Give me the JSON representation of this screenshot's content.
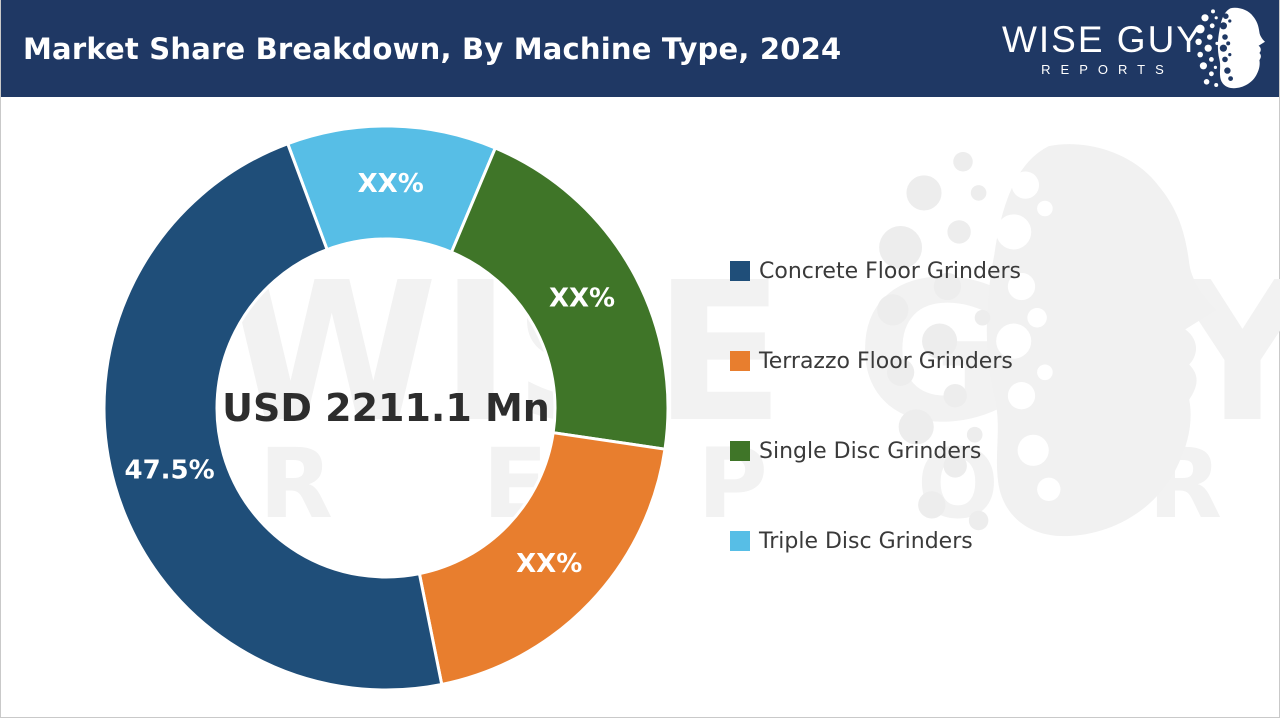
{
  "header": {
    "title": "Market Share Breakdown, By Machine Type, 2024",
    "background": "#1F3864",
    "logo": {
      "line1": "WISE GUY",
      "line2": "REPORTS"
    }
  },
  "watermark": {
    "line1": "WISE GUY",
    "line2": "R E P O R T S"
  },
  "chart_data": {
    "type": "pie",
    "subtype": "donut",
    "title": "Market Share Breakdown, By Machine Type, 2024",
    "center_label": "USD 2211.1 Mn",
    "start_angle_deg": -20.4,
    "clockwise": true,
    "legend_position": "right",
    "segments": [
      {
        "label": "Triple Disc Grinders",
        "display_pct": "XX%",
        "value_pct_est": 12.0,
        "color": "#57BEE6"
      },
      {
        "label": "Single Disc Grinders",
        "display_pct": "XX%",
        "value_pct_est": 21.0,
        "color": "#3F7528"
      },
      {
        "label": "Terrazzo Floor Grinders",
        "display_pct": "XX%",
        "value_pct_est": 19.5,
        "color": "#E87E2E"
      },
      {
        "label": "Concrete Floor Grinders",
        "display_pct": "47.5%",
        "value_pct_est": 47.5,
        "color": "#1F4E79"
      }
    ]
  },
  "legend": {
    "items": [
      {
        "label": "Concrete Floor Grinders",
        "color": "#1F4E79"
      },
      {
        "label": "Terrazzo Floor Grinders",
        "color": "#E87E2E"
      },
      {
        "label": "Single Disc Grinders",
        "color": "#3F7528"
      },
      {
        "label": "Triple Disc Grinders",
        "color": "#57BEE6"
      }
    ]
  }
}
